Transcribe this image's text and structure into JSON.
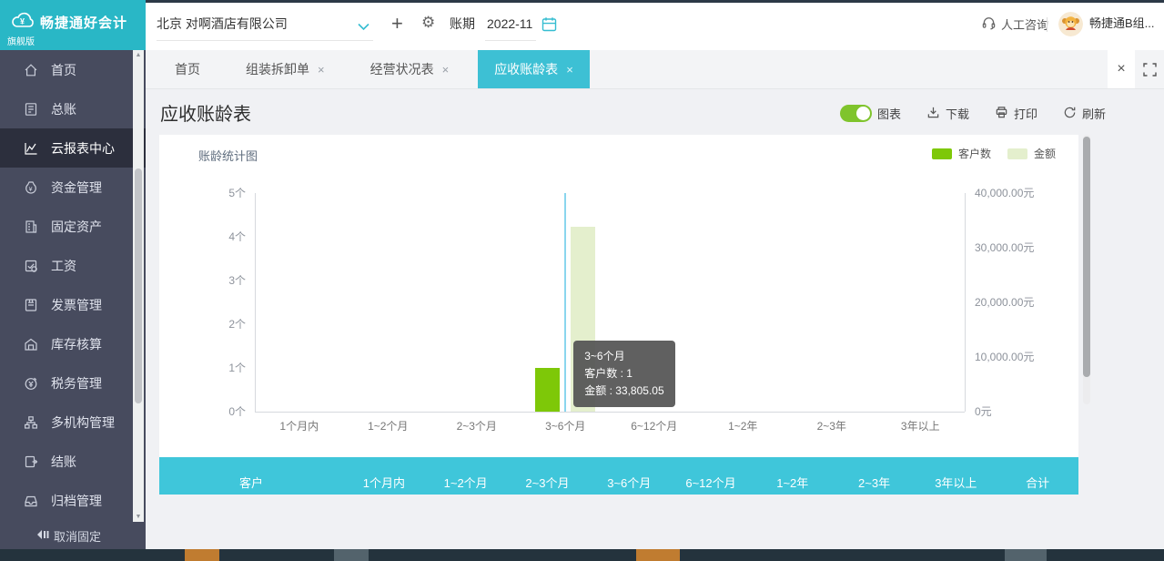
{
  "app": {
    "brand": "畅捷通好会计",
    "edition": "旗舰版",
    "company": "北京 对啊酒店有限公司",
    "plus": "+",
    "gear": "⚙",
    "period_label": "账期",
    "period_value": "2022-11",
    "support": "人工咨询",
    "user": "畅捷通B组..."
  },
  "sidebar": {
    "items": [
      {
        "label": "首页"
      },
      {
        "label": "总账"
      },
      {
        "label": "云报表中心",
        "active": true
      },
      {
        "label": "资金管理"
      },
      {
        "label": "固定资产"
      },
      {
        "label": "工资"
      },
      {
        "label": "发票管理"
      },
      {
        "label": "库存核算"
      },
      {
        "label": "税务管理"
      },
      {
        "label": "多机构管理"
      },
      {
        "label": "结账"
      },
      {
        "label": "归档管理"
      }
    ],
    "unpin": "取消固定"
  },
  "tabs": [
    {
      "label": "首页",
      "closable": false,
      "active": false
    },
    {
      "label": "组装拆卸单",
      "closable": true,
      "active": false
    },
    {
      "label": "经营状况表",
      "closable": true,
      "active": false
    },
    {
      "label": "应收账龄表",
      "closable": true,
      "active": true
    }
  ],
  "tab_controls": {
    "close": "×"
  },
  "page": {
    "title": "应收账龄表",
    "toolbar": {
      "chart_toggle": "图表",
      "chart_toggle_on": true,
      "download": "下载",
      "print": "打印",
      "refresh": "刷新"
    }
  },
  "chart_data": {
    "type": "bar",
    "title": "账龄统计图",
    "categories": [
      "1个月内",
      "1~2个月",
      "2~3个月",
      "3~6个月",
      "6~12个月",
      "1~2年",
      "2~3年",
      "3年以上"
    ],
    "series": [
      {
        "name": "客户数",
        "color": "#7ec808",
        "axis": "left",
        "values": [
          0,
          0,
          0,
          1,
          0,
          0,
          0,
          0
        ]
      },
      {
        "name": "金额",
        "color": "#e4efcd",
        "axis": "right",
        "values": [
          0,
          0,
          0,
          33805.05,
          0,
          0,
          0,
          0
        ]
      }
    ],
    "left_axis": {
      "ticks": [
        "0个",
        "1个",
        "2个",
        "3个",
        "4个",
        "5个"
      ],
      "min": 0,
      "max": 5
    },
    "right_axis": {
      "ticks": [
        "0元",
        "10,000.00元",
        "20,000.00元",
        "30,000.00元",
        "40,000.00元"
      ],
      "min": 0,
      "max": 40000
    },
    "legend_position": "top-right",
    "grid": false,
    "highlight_index": 3,
    "tooltip": {
      "title": "3~6个月",
      "rows": [
        {
          "label": "客户数",
          "value": "1"
        },
        {
          "label": "金额",
          "value": "33,805.05"
        }
      ]
    }
  },
  "table": {
    "headers": [
      "客户",
      "1个月内",
      "1~2个月",
      "2~3个月",
      "3~6个月",
      "6~12个月",
      "1~2年",
      "2~3年",
      "3年以上",
      "合计"
    ]
  },
  "colors": {
    "brand_teal": "#29b7c6",
    "active_tab": "#3dc0d4",
    "table_header": "#3fc6da",
    "sidebar_bg": "#474b5e",
    "sidebar_active": "#2c2f3d",
    "toggle_on": "#7fc42c",
    "axis_pointer": "#8ad6ee",
    "tooltip_bg": "#545454"
  }
}
